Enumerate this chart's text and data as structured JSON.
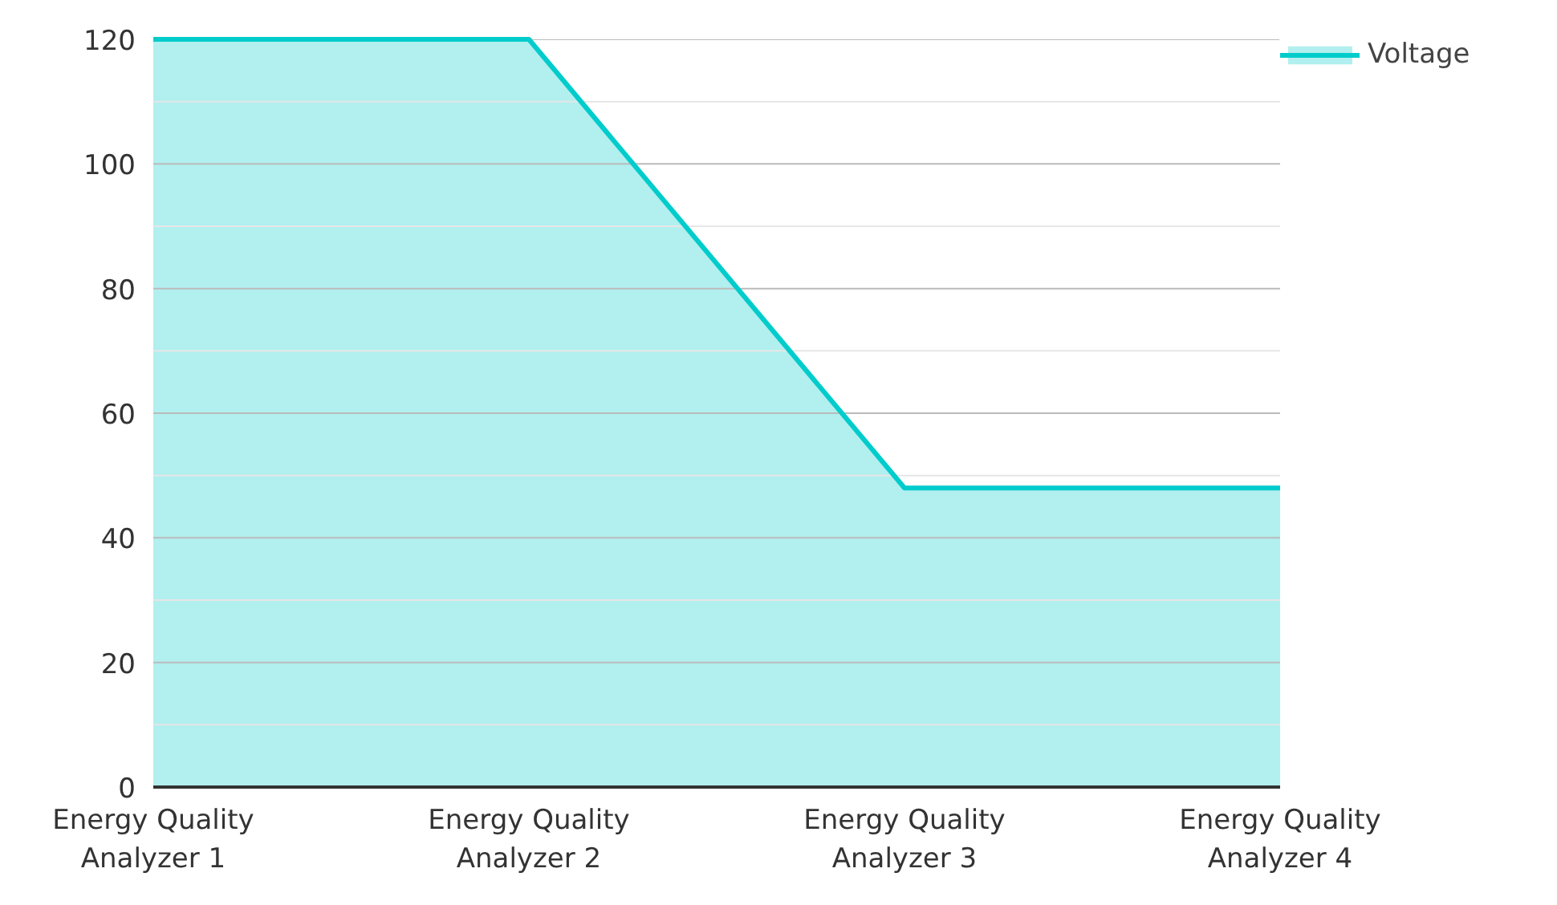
{
  "chart_data": {
    "type": "area",
    "categories": [
      "Energy Quality Analyzer 1",
      "Energy Quality Analyzer 2",
      "Energy Quality Analyzer 3",
      "Energy Quality Analyzer 4"
    ],
    "series": [
      {
        "name": "Voltage",
        "color": "#00cccc",
        "values": [
          120,
          120,
          48,
          48
        ]
      }
    ],
    "ylim": [
      0,
      120
    ],
    "yticks": [
      0,
      {
        "value": 10,
        "label": null
      },
      20,
      {
        "value": 30,
        "label": null
      },
      40,
      {
        "value": 50,
        "label": null
      },
      60,
      {
        "value": 70,
        "label": null
      },
      80,
      {
        "value": 90,
        "label": null
      },
      100,
      {
        "value": 110,
        "label": null
      },
      120
    ],
    "grid": "y",
    "legend": "top right"
  }
}
